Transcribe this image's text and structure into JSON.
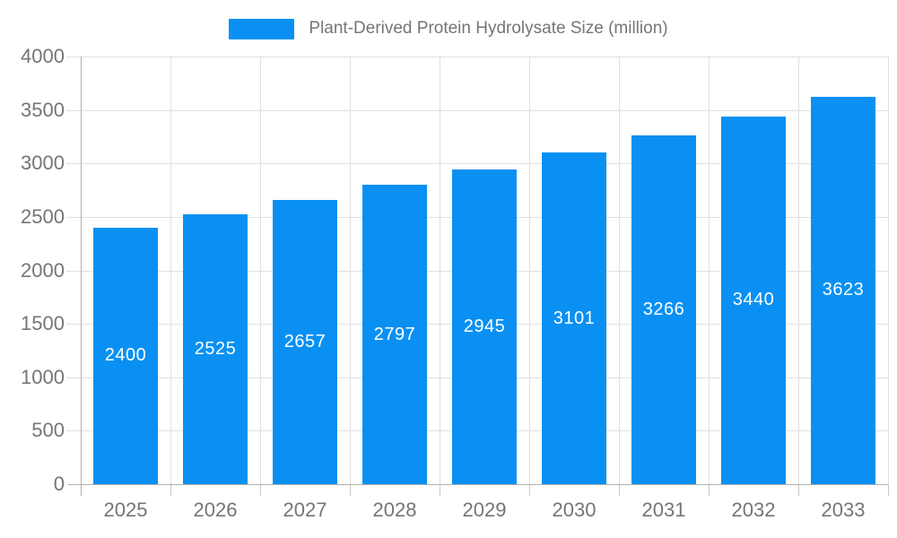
{
  "chart_data": {
    "type": "bar",
    "title": "Plant-Derived Protein Hydrolysate Size (million)",
    "categories": [
      "2025",
      "2026",
      "2027",
      "2028",
      "2029",
      "2030",
      "2031",
      "2032",
      "2033"
    ],
    "values": [
      2400,
      2525,
      2657,
      2797,
      2945,
      3101,
      3266,
      3440,
      3623
    ],
    "xlabel": "",
    "ylabel": "",
    "ylim": [
      0,
      4000
    ],
    "ytick_step": 500,
    "yticks": [
      0,
      500,
      1000,
      1500,
      2000,
      2500,
      3000,
      3500,
      4000
    ],
    "grid": true,
    "legend_position": "top",
    "bar_labels_inside": true,
    "colors": {
      "bar": "#0990F2",
      "bar_label": "#ffffff",
      "axis": "#b0b0b0",
      "tick": "#c8c8c8",
      "grid": "#e0e0e0",
      "text": "#757575"
    }
  }
}
